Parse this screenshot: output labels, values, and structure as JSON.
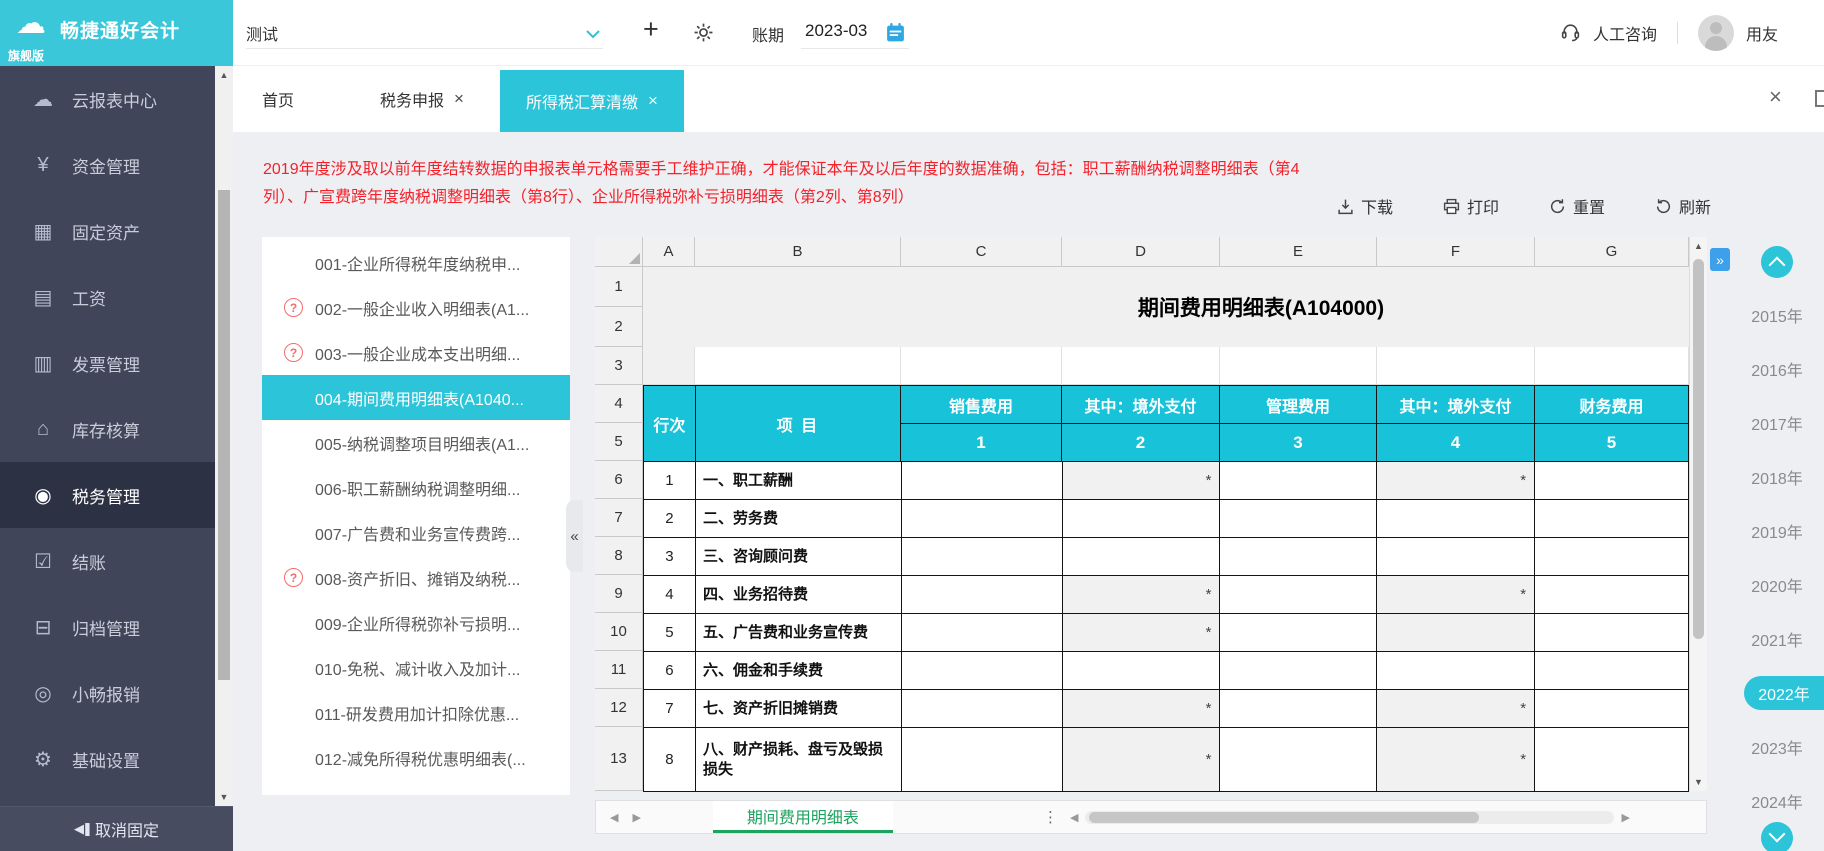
{
  "colors": {
    "brand_cyan": "#2cc4d8",
    "logo_bg": "#3ac7da",
    "sidebar_bg": "#40455a",
    "sidebar_active_bg": "#2d3144",
    "table_header_bg": "#18c2d8",
    "warning_red": "#f5212b",
    "sheet_tab_green": "#1ca35f",
    "expander_blue": "#3ca0ea"
  },
  "brand": {
    "name": "畅捷通好会计",
    "edition": "旗舰版"
  },
  "topbar": {
    "company": "测试",
    "add_label": "+",
    "period_label": "账期",
    "period_value": "2023-03",
    "support_label": "人工咨询",
    "user_label": "用友"
  },
  "tabs": [
    {
      "label": "首页",
      "closable": false,
      "active": false
    },
    {
      "label": "税务申报",
      "closable": true,
      "active": false
    },
    {
      "label": "所得税汇算清缴",
      "closable": true,
      "active": true
    }
  ],
  "sidebar": {
    "items": [
      {
        "label": "云报表中心",
        "icon": "cloud-report-icon",
        "active": false
      },
      {
        "label": "资金管理",
        "icon": "funds-icon",
        "active": false
      },
      {
        "label": "固定资产",
        "icon": "fixed-assets-icon",
        "active": false
      },
      {
        "label": "工资",
        "icon": "payroll-icon",
        "active": false
      },
      {
        "label": "发票管理",
        "icon": "invoice-icon",
        "active": false
      },
      {
        "label": "库存核算",
        "icon": "inventory-icon",
        "active": false
      },
      {
        "label": "税务管理",
        "icon": "tax-icon",
        "active": true
      },
      {
        "label": "结账",
        "icon": "closing-icon",
        "active": false
      },
      {
        "label": "归档管理",
        "icon": "archive-icon",
        "active": false
      },
      {
        "label": "小畅报销",
        "icon": "reimburse-icon",
        "active": false
      },
      {
        "label": "基础设置",
        "icon": "settings-icon",
        "active": false
      },
      {
        "label": "",
        "icon": "partial-icon",
        "active": false
      }
    ],
    "unpin_label": "取消固定"
  },
  "notice": {
    "lines": [
      "2019年度涉及取以前年度结转数据的申报表单元格需要手工维护正确，才能保证本年及以后年度的数据准确，包括：职工薪酬纳税调整明细表（第4",
      "列）、广宣费跨年度纳税调整明细表（第8行）、企业所得税弥补亏损明细表（第2列、第8列）"
    ]
  },
  "toolbar": [
    {
      "label": "下载",
      "icon": "download-icon"
    },
    {
      "label": "打印",
      "icon": "print-icon"
    },
    {
      "label": "重置",
      "icon": "reset-icon"
    },
    {
      "label": "刷新",
      "icon": "refresh-icon"
    }
  ],
  "form_list": [
    {
      "label": "001-企业所得税年度纳税申...",
      "help": false,
      "selected": false
    },
    {
      "label": "002-一般企业收入明细表(A1...",
      "help": true,
      "selected": false
    },
    {
      "label": "003-一般企业成本支出明细...",
      "help": true,
      "selected": false
    },
    {
      "label": "004-期间费用明细表(A1040...",
      "help": false,
      "selected": true
    },
    {
      "label": "005-纳税调整项目明细表(A1...",
      "help": false,
      "selected": false
    },
    {
      "label": "006-职工薪酬纳税调整明细...",
      "help": false,
      "selected": false
    },
    {
      "label": "007-广告费和业务宣传费跨...",
      "help": false,
      "selected": false
    },
    {
      "label": "008-资产折旧、摊销及纳税...",
      "help": true,
      "selected": false
    },
    {
      "label": "009-企业所得税弥补亏损明...",
      "help": false,
      "selected": false
    },
    {
      "label": "010-免税、减计收入及加计...",
      "help": false,
      "selected": false
    },
    {
      "label": "011-研发费用加计扣除优惠...",
      "help": false,
      "selected": false
    },
    {
      "label": "012-减免所得税优惠明细表(...",
      "help": false,
      "selected": false
    }
  ],
  "sheet": {
    "title": "期间费用明细表(A104000)",
    "column_letters": [
      "A",
      "B",
      "C",
      "D",
      "E",
      "F",
      "G"
    ],
    "row_numbers": [
      "1",
      "2",
      "3",
      "4",
      "5",
      "6",
      "7",
      "8",
      "9",
      "10",
      "11",
      "12",
      "13"
    ],
    "header": {
      "line_no": "行次",
      "item": "项 目",
      "groups": [
        {
          "label": "销售费用",
          "num": "1"
        },
        {
          "label": "其中：境外支付",
          "num": "2"
        },
        {
          "label": "管理费用",
          "num": "3"
        },
        {
          "label": "其中：境外支付",
          "num": "4"
        },
        {
          "label": "财务费用",
          "num": "5"
        }
      ]
    },
    "rows": [
      {
        "no": "1",
        "item": "一、职工薪酬",
        "c1": "",
        "c2": "*",
        "c3": "",
        "c4": "*",
        "c5": "",
        "locked": true
      },
      {
        "no": "2",
        "item": "二、劳务费",
        "c1": "",
        "c2": "",
        "c3": "",
        "c4": "",
        "c5": "",
        "locked": false
      },
      {
        "no": "3",
        "item": "三、咨询顾问费",
        "c1": "",
        "c2": "",
        "c3": "",
        "c4": "",
        "c5": "",
        "locked": false
      },
      {
        "no": "4",
        "item": "四、业务招待费",
        "c1": "",
        "c2": "*",
        "c3": "",
        "c4": "*",
        "c5": "",
        "locked": true
      },
      {
        "no": "5",
        "item": "五、广告费和业务宣传费",
        "c1": "",
        "c2": "*",
        "c3": "",
        "c4": "",
        "c5": "",
        "locked": true
      },
      {
        "no": "6",
        "item": "六、佣金和手续费",
        "c1": "",
        "c2": "",
        "c3": "",
        "c4": "",
        "c5": "",
        "locked": false
      },
      {
        "no": "7",
        "item": "七、资产折旧摊销费",
        "c1": "",
        "c2": "*",
        "c3": "",
        "c4": "*",
        "c5": "",
        "locked": true
      },
      {
        "no": "8",
        "item": "八、财产损耗、盘亏及毁损损失",
        "c1": "",
        "c2": "*",
        "c3": "",
        "c4": "*",
        "c5": "",
        "locked": true
      }
    ],
    "sheet_tab": "期间费用明细表"
  },
  "years": {
    "items": [
      {
        "label": "2015年",
        "selected": false
      },
      {
        "label": "2016年",
        "selected": false
      },
      {
        "label": "2017年",
        "selected": false
      },
      {
        "label": "2018年",
        "selected": false
      },
      {
        "label": "2019年",
        "selected": false
      },
      {
        "label": "2020年",
        "selected": false
      },
      {
        "label": "2021年",
        "selected": false
      },
      {
        "label": "2022年",
        "selected": true
      },
      {
        "label": "2023年",
        "selected": false
      },
      {
        "label": "2024年",
        "selected": false
      }
    ]
  }
}
